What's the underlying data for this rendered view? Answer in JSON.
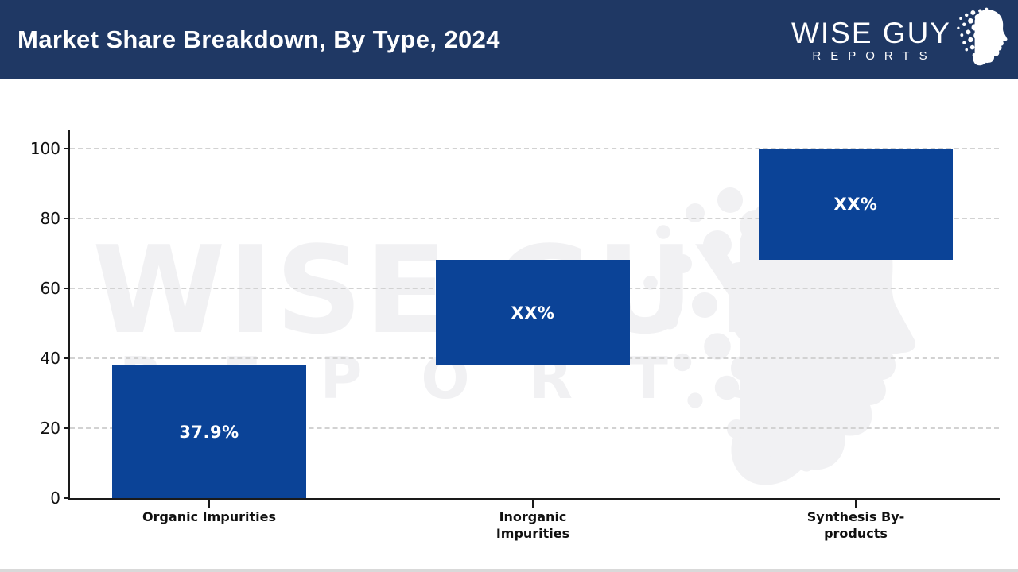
{
  "header": {
    "title": "Market Share Breakdown, By Type, 2024",
    "logo": {
      "line1": "WISE GUY",
      "line2": "REPORTS"
    }
  },
  "watermark": {
    "line1": "WISE GUY",
    "line2": "REPORTS"
  },
  "chart_data": {
    "type": "bar",
    "subtype": "floating-waterfall",
    "title": "Market Share Breakdown, By Type, 2024",
    "categories": [
      "Organic Impurities",
      "Inorganic Impurities",
      "Synthesis By-products"
    ],
    "categories_display": [
      "Organic Impurities",
      "Inorganic\nImpurities",
      "Synthesis By-\nproducts"
    ],
    "segments": [
      {
        "label": "Organic Impurities",
        "start": 0,
        "end": 37.9,
        "value_label": "37.9%"
      },
      {
        "label": "Inorganic Impurities",
        "start": 37.9,
        "end": 68.2,
        "value_label": "XX%"
      },
      {
        "label": "Synthesis By-products",
        "start": 68.2,
        "end": 100,
        "value_label": "XX%"
      }
    ],
    "yticks": [
      0,
      20,
      40,
      60,
      80,
      100
    ],
    "ylim": [
      0,
      105
    ],
    "xlabel": "",
    "ylabel": "",
    "grid": "horizontal-dashed",
    "legend": "none",
    "bar_color": "#0b4397",
    "bar_label_color": "#ffffff"
  },
  "colors": {
    "header_bg": "#1f3864",
    "axis": "#1a1a1a",
    "gridline": "#d2d2d2",
    "watermark": "#f1f1f3",
    "bottom_rule": "#d9d9d9"
  }
}
